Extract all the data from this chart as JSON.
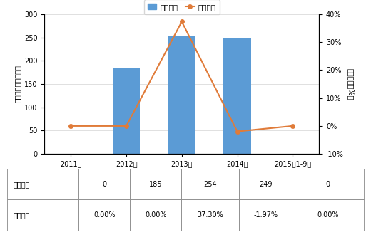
{
  "categories": [
    "2011年",
    "2012年",
    "2013年",
    "2014年",
    "2015年1-9月"
  ],
  "bar_values": [
    0,
    185,
    254,
    249,
    0
  ],
  "line_values": [
    0.0,
    0.0,
    37.3,
    -1.97,
    0.0
  ],
  "bar_color": "#5b9bd5",
  "line_color": "#e07b39",
  "ylabel_left": "出口数量（平方米）",
  "ylabel_right": "同比增长（%）",
  "ylim_left": [
    0,
    300
  ],
  "ylim_right": [
    -10,
    40
  ],
  "yticks_left": [
    0,
    50,
    100,
    150,
    200,
    250,
    300
  ],
  "yticks_right": [
    -10,
    0,
    10,
    20,
    30,
    40
  ],
  "legend_bar": "出口数量",
  "legend_line": "同比增长",
  "table_row1_label": "出口数量",
  "table_row1_values": [
    "0",
    "185",
    "254",
    "249",
    "0"
  ],
  "table_row2_label": "同比增长",
  "table_row2_values": [
    "0.00%",
    "0.00%",
    "37.30%",
    "-1.97%",
    "0.00%"
  ],
  "bg_color": "#ffffff",
  "grid_color": "#e0e0e0"
}
